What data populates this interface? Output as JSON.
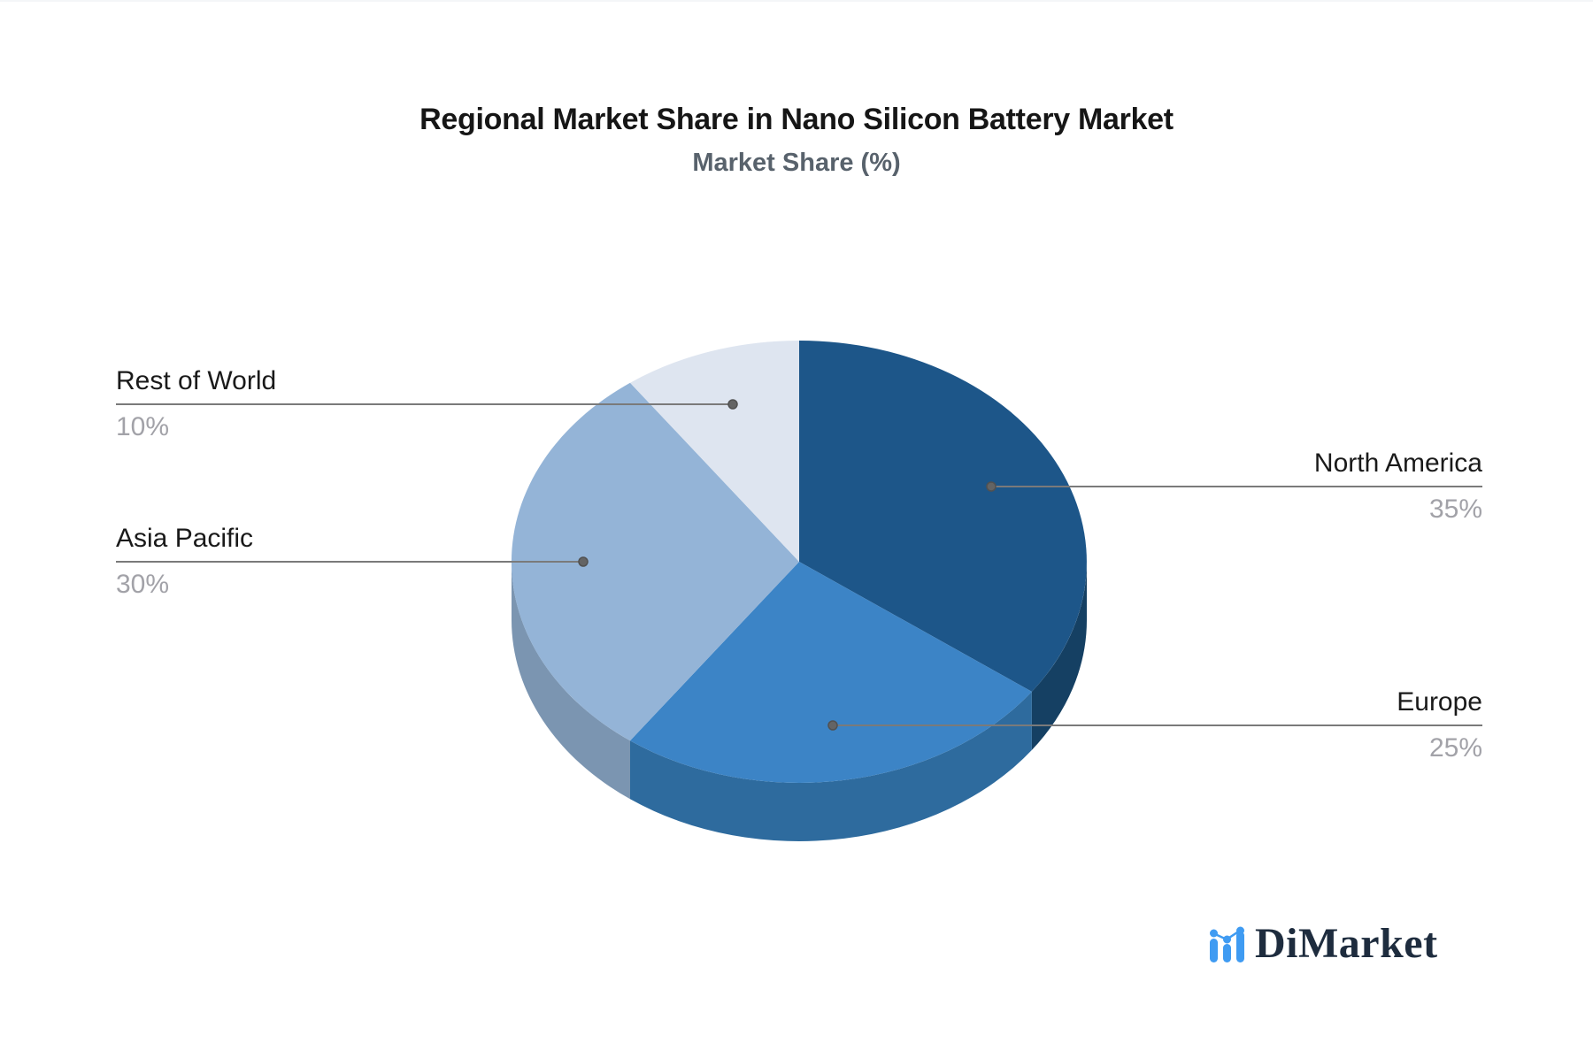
{
  "title": "Regional Market Share in Nano Silicon Battery Market",
  "subtitle": "Market Share (%)",
  "chart_data": {
    "type": "pie",
    "style": "3d",
    "unit": "%",
    "title": "Regional Market Share in Nano Silicon Battery Market",
    "subtitle": "Market Share (%)",
    "start_angle": "12 o'clock, clockwise",
    "legend": "none (leader-line callouts)",
    "slices": [
      {
        "label": "North America",
        "value": 35,
        "value_label": "35%",
        "color": "#1d5689",
        "side_color": "#154063",
        "label_side": "right"
      },
      {
        "label": "Europe",
        "value": 25,
        "value_label": "25%",
        "color": "#3c84c6",
        "side_color": "#2e6b9e",
        "label_side": "right"
      },
      {
        "label": "Asia Pacific",
        "value": 30,
        "value_label": "30%",
        "color": "#94b4d7",
        "side_color": "#7b95b1",
        "label_side": "left"
      },
      {
        "label": "Rest of World",
        "value": 10,
        "value_label": "10%",
        "color": "#dee5f0",
        "label_side": "left"
      }
    ],
    "label_color": "#1a1a1a",
    "value_color": "#a2a2a8",
    "leader_color": "#7a7a7a",
    "leader_dot_color": "#646464"
  },
  "branding": {
    "name": "DiMarket",
    "text_color": "#1e2c3e",
    "icon_color": "#3f9bf2"
  }
}
